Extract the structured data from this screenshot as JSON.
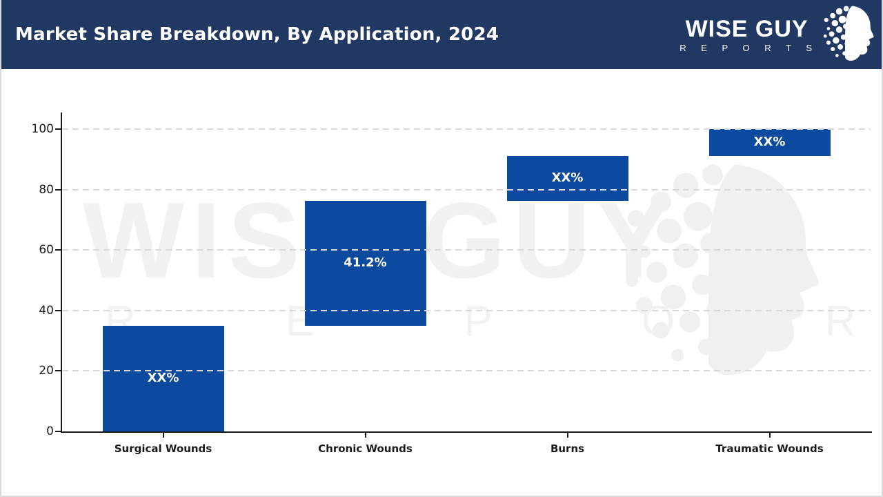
{
  "header": {
    "title": "Market Share Breakdown, By Application, 2024",
    "bg_color": "#213863",
    "logo": {
      "wordmark": "WISE GUY",
      "subtitle": "R E P O R T S"
    }
  },
  "watermark": {
    "line1": "WISE GUY",
    "line2": "R E P O R T S"
  },
  "chart_data": {
    "type": "bar",
    "subtype": "waterfall-floating-segments",
    "title": "Market Share Breakdown, By Application, 2024",
    "xlabel": "",
    "ylabel": "",
    "ylim": [
      0,
      100
    ],
    "yticks": [
      0,
      20,
      40,
      60,
      80,
      100
    ],
    "grid": "horizontal-dashed",
    "legend": "none",
    "bar_color": "#0b4a9e",
    "label_color": "#ffffff",
    "categories": [
      "Surgical Wounds",
      "Chronic Wounds",
      "Burns",
      "Traumatic Wounds"
    ],
    "bars": [
      {
        "category": "Surgical Wounds",
        "start": 0,
        "end": 35,
        "label": "XX%"
      },
      {
        "category": "Chronic Wounds",
        "start": 35,
        "end": 76.2,
        "label": "41.2%"
      },
      {
        "category": "Burns",
        "start": 76.2,
        "end": 91.2,
        "label": "XX%"
      },
      {
        "category": "Traumatic Wounds",
        "start": 91.2,
        "end": 100,
        "label": "XX%"
      }
    ]
  }
}
